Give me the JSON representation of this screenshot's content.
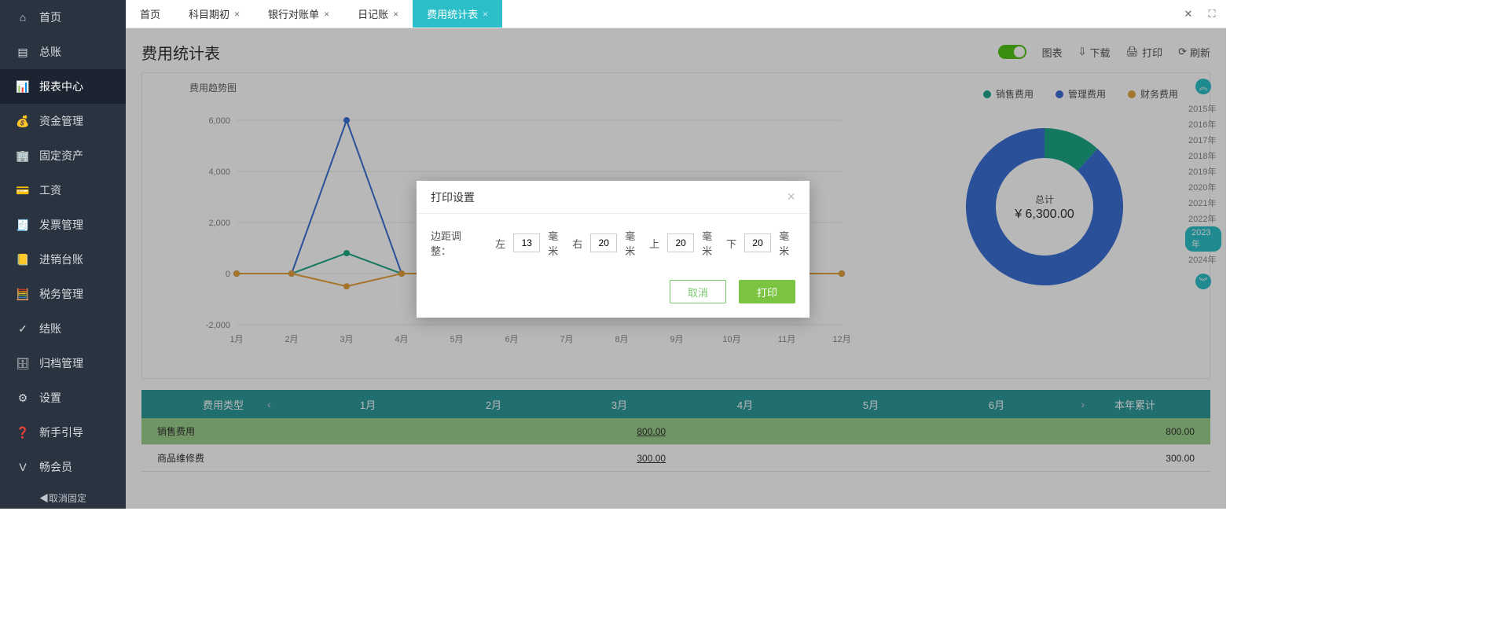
{
  "sidebar": {
    "items": [
      {
        "label": "首页",
        "icon": "home"
      },
      {
        "label": "总账",
        "icon": "book"
      },
      {
        "label": "报表中心",
        "icon": "chart",
        "active": true
      },
      {
        "label": "资金管理",
        "icon": "wallet"
      },
      {
        "label": "固定资产",
        "icon": "asset"
      },
      {
        "label": "工资",
        "icon": "salary"
      },
      {
        "label": "发票管理",
        "icon": "invoice"
      },
      {
        "label": "进销台账",
        "icon": "ledger"
      },
      {
        "label": "税务管理",
        "icon": "tax"
      },
      {
        "label": "结账",
        "icon": "close-book"
      },
      {
        "label": "归档管理",
        "icon": "archive"
      },
      {
        "label": "设置",
        "icon": "gear"
      },
      {
        "label": "新手引导",
        "icon": "guide"
      },
      {
        "label": "畅会员",
        "icon": "vip"
      }
    ],
    "footer": "◀取消固定"
  },
  "tabs": [
    {
      "label": "首页",
      "closable": false
    },
    {
      "label": "科目期初",
      "closable": true
    },
    {
      "label": "银行对账单",
      "closable": true
    },
    {
      "label": "日记账",
      "closable": true
    },
    {
      "label": "费用统计表",
      "closable": true,
      "active": true
    }
  ],
  "page": {
    "title": "费用统计表",
    "actions": {
      "chart_toggle": "图表",
      "download": "下载",
      "print": "打印",
      "refresh": "刷新"
    }
  },
  "chart": {
    "title": "费用趋势图",
    "legend": [
      {
        "label": "销售费用",
        "color": "#1ba784"
      },
      {
        "label": "管理费用",
        "color": "#3b6fd6"
      },
      {
        "label": "财务费用",
        "color": "#e6a23c"
      }
    ],
    "x_labels": [
      "1月",
      "2月",
      "3月",
      "4月",
      "5月",
      "6月",
      "7月",
      "8月",
      "9月",
      "10月",
      "11月",
      "12月"
    ],
    "y_ticks": [
      -2000,
      0,
      2000,
      4000,
      6000
    ],
    "ylim": [
      -2000,
      6000
    ],
    "background_color": "#ffffff",
    "grid_color": "#e8e8e8",
    "axis_color": "#cccccc",
    "line_width": 2,
    "marker_radius": 4,
    "series": {
      "销售费用": [
        0,
        0,
        800,
        0,
        0,
        0,
        0,
        0,
        0,
        0,
        0,
        0
      ],
      "管理费用": [
        0,
        0,
        6000,
        0,
        0,
        0,
        0,
        0,
        0,
        0,
        0,
        0
      ],
      "财务费用": [
        0,
        0,
        -500,
        0,
        0,
        0,
        0,
        0,
        0,
        0,
        0,
        0
      ]
    },
    "donut": {
      "total_label": "总计",
      "total_value": "¥ 6,300.00",
      "slices": [
        {
          "label": "销售费用",
          "value": 800,
          "color": "#1ba784"
        },
        {
          "label": "管理费用",
          "value": 6000,
          "color": "#3b6fd6"
        },
        {
          "label": "财务费用",
          "value": -500,
          "color": "#e6a23c"
        }
      ],
      "inner_radius": 0.62
    }
  },
  "table": {
    "header_bg": "#2d9999",
    "highlight_bg": "#9ccf8d",
    "columns": [
      "费用类型",
      "1月",
      "2月",
      "3月",
      "4月",
      "5月",
      "6月",
      "本年累计"
    ],
    "rows": [
      {
        "cells": [
          "销售费用",
          "",
          "",
          "800.00",
          "",
          "",
          "",
          "800.00"
        ],
        "highlight": true,
        "link_col": 3
      },
      {
        "cells": [
          "商品维修费",
          "",
          "",
          "300.00",
          "",
          "",
          "",
          "300.00"
        ],
        "link_col": 3
      }
    ]
  },
  "years": {
    "list": [
      "2015年",
      "2016年",
      "2017年",
      "2018年",
      "2019年",
      "2020年",
      "2021年",
      "2022年",
      "2023年",
      "2024年"
    ],
    "active": "2023年"
  },
  "modal": {
    "title": "打印设置",
    "label_margin": "边距调整：",
    "left": "左",
    "right": "右",
    "top": "上",
    "bottom": "下",
    "unit": "毫米",
    "values": {
      "left": "13",
      "right": "20",
      "top": "20",
      "bottom": "20"
    },
    "cancel": "取消",
    "ok": "打印"
  }
}
